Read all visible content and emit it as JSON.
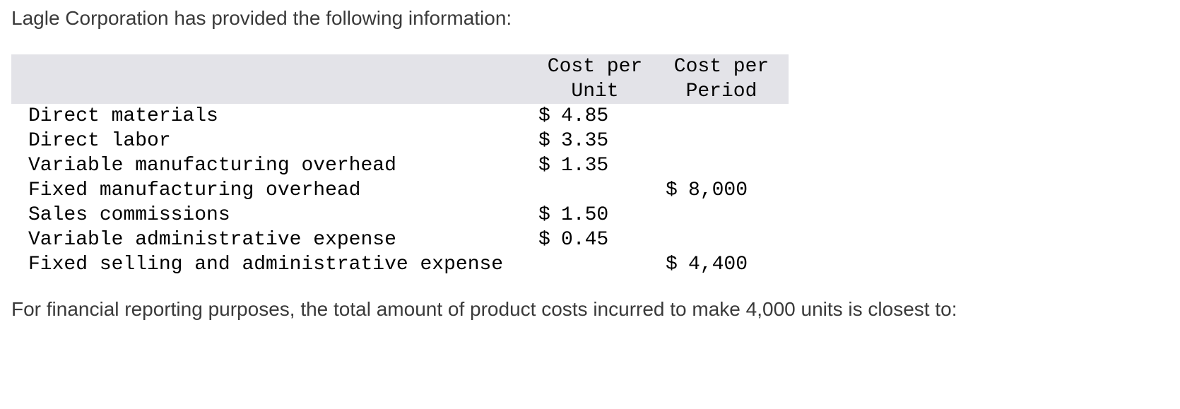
{
  "intro": "Lagle Corporation has provided the following information:",
  "table": {
    "header": {
      "col1_line1": "Cost per",
      "col1_line2": "Unit",
      "col2_line1": "Cost per",
      "col2_line2": "Period"
    },
    "rows": [
      {
        "label": "Direct materials",
        "unit_sym": "$",
        "unit_val": "4.85",
        "period_sym": "",
        "period_val": ""
      },
      {
        "label": "Direct labor",
        "unit_sym": "$",
        "unit_val": "3.35",
        "period_sym": "",
        "period_val": ""
      },
      {
        "label": "Variable manufacturing overhead",
        "unit_sym": "$",
        "unit_val": "1.35",
        "period_sym": "",
        "period_val": ""
      },
      {
        "label": "Fixed manufacturing overhead",
        "unit_sym": "",
        "unit_val": "",
        "period_sym": "$",
        "period_val": "8,000"
      },
      {
        "label": "Sales commissions",
        "unit_sym": "$",
        "unit_val": "1.50",
        "period_sym": "",
        "period_val": ""
      },
      {
        "label": "Variable administrative expense",
        "unit_sym": "$",
        "unit_val": "0.45",
        "period_sym": "",
        "period_val": ""
      },
      {
        "label": "Fixed selling and administrative expense",
        "unit_sym": "",
        "unit_val": "",
        "period_sym": "$",
        "period_val": "4,400"
      }
    ]
  },
  "outro": "For financial reporting purposes, the total amount of product costs incurred to make 4,000 units is closest to:"
}
